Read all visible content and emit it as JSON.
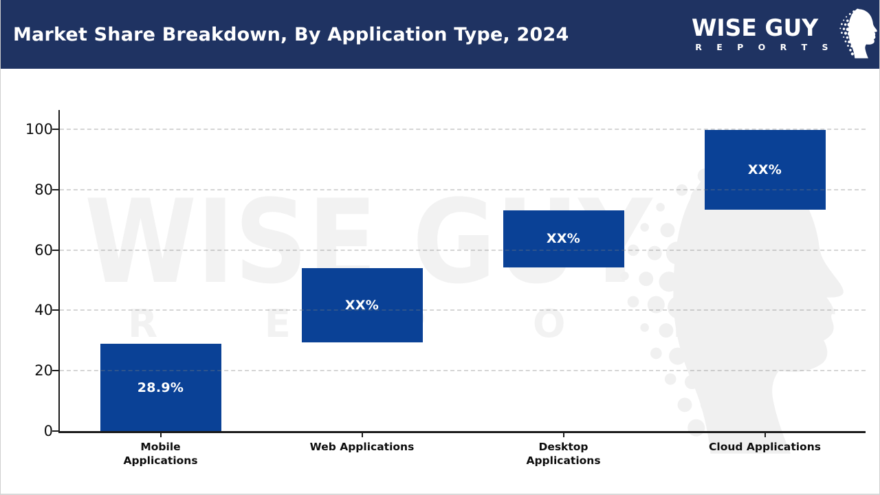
{
  "header": {
    "title": "Market Share Breakdown, By Application Type, 2024",
    "logo": {
      "primary": "WISE GUY",
      "secondary": "R E P O R T S"
    }
  },
  "watermark": {
    "primary": "WISE GUY",
    "secondary": "R E P O R T S"
  },
  "colors": {
    "header_bg": "#1f3362",
    "bar": "#0a4196",
    "axis": "#1a1a1a",
    "grid_dash": "#dcdcdc",
    "watermark": "#f2f2f2",
    "bar_label": "#ffffff",
    "tick_text": "#0d0d0d"
  },
  "chart_data": {
    "type": "bar",
    "variant": "floating-waterfall",
    "title": "Market Share Breakdown, By Application Type, 2024",
    "categories": [
      "Mobile\nApplications",
      "Web Applications",
      "Desktop\nApplications",
      "Cloud Applications"
    ],
    "bars": [
      {
        "category": "Mobile\nApplications",
        "start": 0,
        "end": 28.9,
        "label": "28.9%"
      },
      {
        "category": "Web Applications",
        "start": 29.3,
        "end": 54.1,
        "label": "XX%"
      },
      {
        "category": "Desktop\nApplications",
        "start": 54.3,
        "end": 73.2,
        "label": "XX%"
      },
      {
        "category": "Cloud Applications",
        "start": 73.4,
        "end": 99.8,
        "label": "XX%"
      }
    ],
    "ylim": [
      0,
      100
    ],
    "yticks": [
      0,
      20,
      40,
      60,
      80,
      100
    ],
    "xlabel": "",
    "ylabel": "",
    "grid": "horizontal-dashed, drawn above bars",
    "legend": "none",
    "bar_color": "#0a4196",
    "label_color": "#ffffff"
  }
}
